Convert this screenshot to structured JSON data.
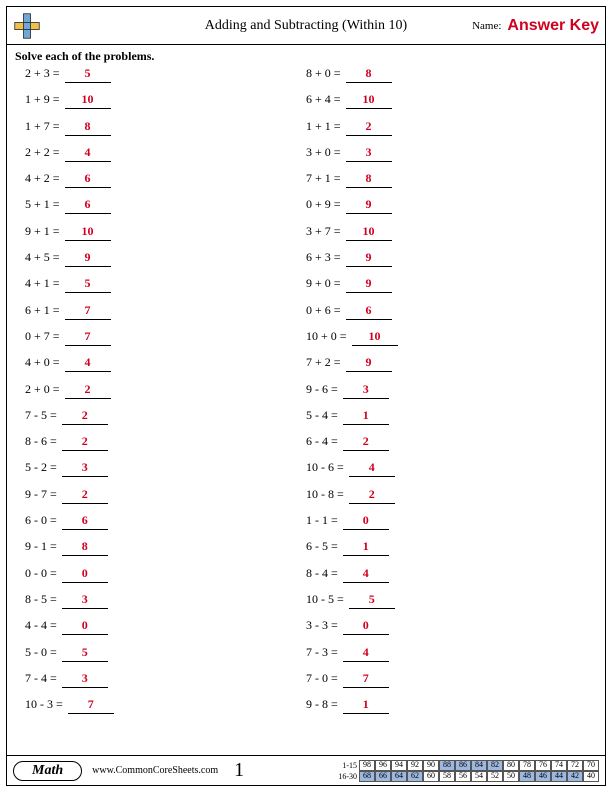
{
  "header": {
    "title": "Adding and Subtracting (Within 10)",
    "name_label": "Name:",
    "answer_key": "Answer Key",
    "logo_colors": {
      "v": "#6fa8d8",
      "h": "#f2c04a",
      "outline": "#333333"
    }
  },
  "instruction": "Solve each of the problems.",
  "answer_color": "#d00020",
  "col_left": [
    {
      "expr": "2 + 3 =",
      "ans": "5"
    },
    {
      "expr": "1 + 9 =",
      "ans": "10"
    },
    {
      "expr": "1 + 7 =",
      "ans": "8"
    },
    {
      "expr": "2 + 2 =",
      "ans": "4"
    },
    {
      "expr": "4 + 2 =",
      "ans": "6"
    },
    {
      "expr": "5 + 1 =",
      "ans": "6"
    },
    {
      "expr": "9 + 1 =",
      "ans": "10"
    },
    {
      "expr": "4 + 5 =",
      "ans": "9"
    },
    {
      "expr": "4 + 1 =",
      "ans": "5"
    },
    {
      "expr": "6 + 1 =",
      "ans": "7"
    },
    {
      "expr": "0 + 7 =",
      "ans": "7"
    },
    {
      "expr": "4 + 0 =",
      "ans": "4"
    },
    {
      "expr": "2 + 0 =",
      "ans": "2"
    },
    {
      "expr": "7 - 5 =",
      "ans": "2"
    },
    {
      "expr": "8 - 6 =",
      "ans": "2"
    },
    {
      "expr": "5 - 2 =",
      "ans": "3"
    },
    {
      "expr": "9 - 7 =",
      "ans": "2"
    },
    {
      "expr": "6 - 0 =",
      "ans": "6"
    },
    {
      "expr": "9 - 1 =",
      "ans": "8"
    },
    {
      "expr": "0 - 0 =",
      "ans": "0"
    },
    {
      "expr": "8 - 5 =",
      "ans": "3"
    },
    {
      "expr": "4 - 4 =",
      "ans": "0"
    },
    {
      "expr": "5 - 0 =",
      "ans": "5"
    },
    {
      "expr": "7 - 4 =",
      "ans": "3"
    },
    {
      "expr": "10 - 3 =",
      "ans": "7"
    }
  ],
  "col_right": [
    {
      "expr": "8 + 0 =",
      "ans": "8"
    },
    {
      "expr": "6 + 4 =",
      "ans": "10"
    },
    {
      "expr": "1 + 1 =",
      "ans": "2"
    },
    {
      "expr": "3 + 0 =",
      "ans": "3"
    },
    {
      "expr": "7 + 1 =",
      "ans": "8"
    },
    {
      "expr": "0 + 9 =",
      "ans": "9"
    },
    {
      "expr": "3 + 7 =",
      "ans": "10"
    },
    {
      "expr": "6 + 3 =",
      "ans": "9"
    },
    {
      "expr": "9 + 0 =",
      "ans": "9"
    },
    {
      "expr": "0 + 6 =",
      "ans": "6"
    },
    {
      "expr": "10 + 0 =",
      "ans": "10"
    },
    {
      "expr": "7 + 2 =",
      "ans": "9"
    },
    {
      "expr": "9 - 6 =",
      "ans": "3"
    },
    {
      "expr": "5 - 4 =",
      "ans": "1"
    },
    {
      "expr": "6 - 4 =",
      "ans": "2"
    },
    {
      "expr": "10 - 6 =",
      "ans": "4"
    },
    {
      "expr": "10 - 8 =",
      "ans": "2"
    },
    {
      "expr": "1 - 1 =",
      "ans": "0"
    },
    {
      "expr": "6 - 5 =",
      "ans": "1"
    },
    {
      "expr": "8 - 4 =",
      "ans": "4"
    },
    {
      "expr": "10 - 5 =",
      "ans": "5"
    },
    {
      "expr": "3 - 3 =",
      "ans": "0"
    },
    {
      "expr": "7 - 3 =",
      "ans": "4"
    },
    {
      "expr": "7 - 0 =",
      "ans": "7"
    },
    {
      "expr": "9 - 8 =",
      "ans": "1"
    }
  ],
  "footer": {
    "subject": "Math",
    "site": "www.CommonCoreSheets.com",
    "page": "1",
    "score_rows": [
      {
        "label": "1-15",
        "cells": [
          {
            "v": "98",
            "hl": false
          },
          {
            "v": "96",
            "hl": false
          },
          {
            "v": "94",
            "hl": false
          },
          {
            "v": "92",
            "hl": false
          },
          {
            "v": "90",
            "hl": false
          },
          {
            "v": "88",
            "hl": true
          },
          {
            "v": "86",
            "hl": true
          },
          {
            "v": "84",
            "hl": true
          },
          {
            "v": "82",
            "hl": true
          },
          {
            "v": "80",
            "hl": false
          },
          {
            "v": "78",
            "hl": false
          },
          {
            "v": "76",
            "hl": false
          },
          {
            "v": "74",
            "hl": false
          },
          {
            "v": "72",
            "hl": false
          },
          {
            "v": "70",
            "hl": false
          }
        ]
      },
      {
        "label": "16-30",
        "cells": [
          {
            "v": "68",
            "hl": true
          },
          {
            "v": "66",
            "hl": true
          },
          {
            "v": "64",
            "hl": true
          },
          {
            "v": "62",
            "hl": true
          },
          {
            "v": "60",
            "hl": false
          },
          {
            "v": "58",
            "hl": false
          },
          {
            "v": "56",
            "hl": false
          },
          {
            "v": "54",
            "hl": false
          },
          {
            "v": "52",
            "hl": false
          },
          {
            "v": "50",
            "hl": false
          },
          {
            "v": "48",
            "hl": true
          },
          {
            "v": "46",
            "hl": true
          },
          {
            "v": "44",
            "hl": true
          },
          {
            "v": "42",
            "hl": true
          },
          {
            "v": "40",
            "hl": false
          }
        ]
      }
    ],
    "cell_hl_bg": "#9db8e0",
    "cell_bg": "#ffffff"
  }
}
